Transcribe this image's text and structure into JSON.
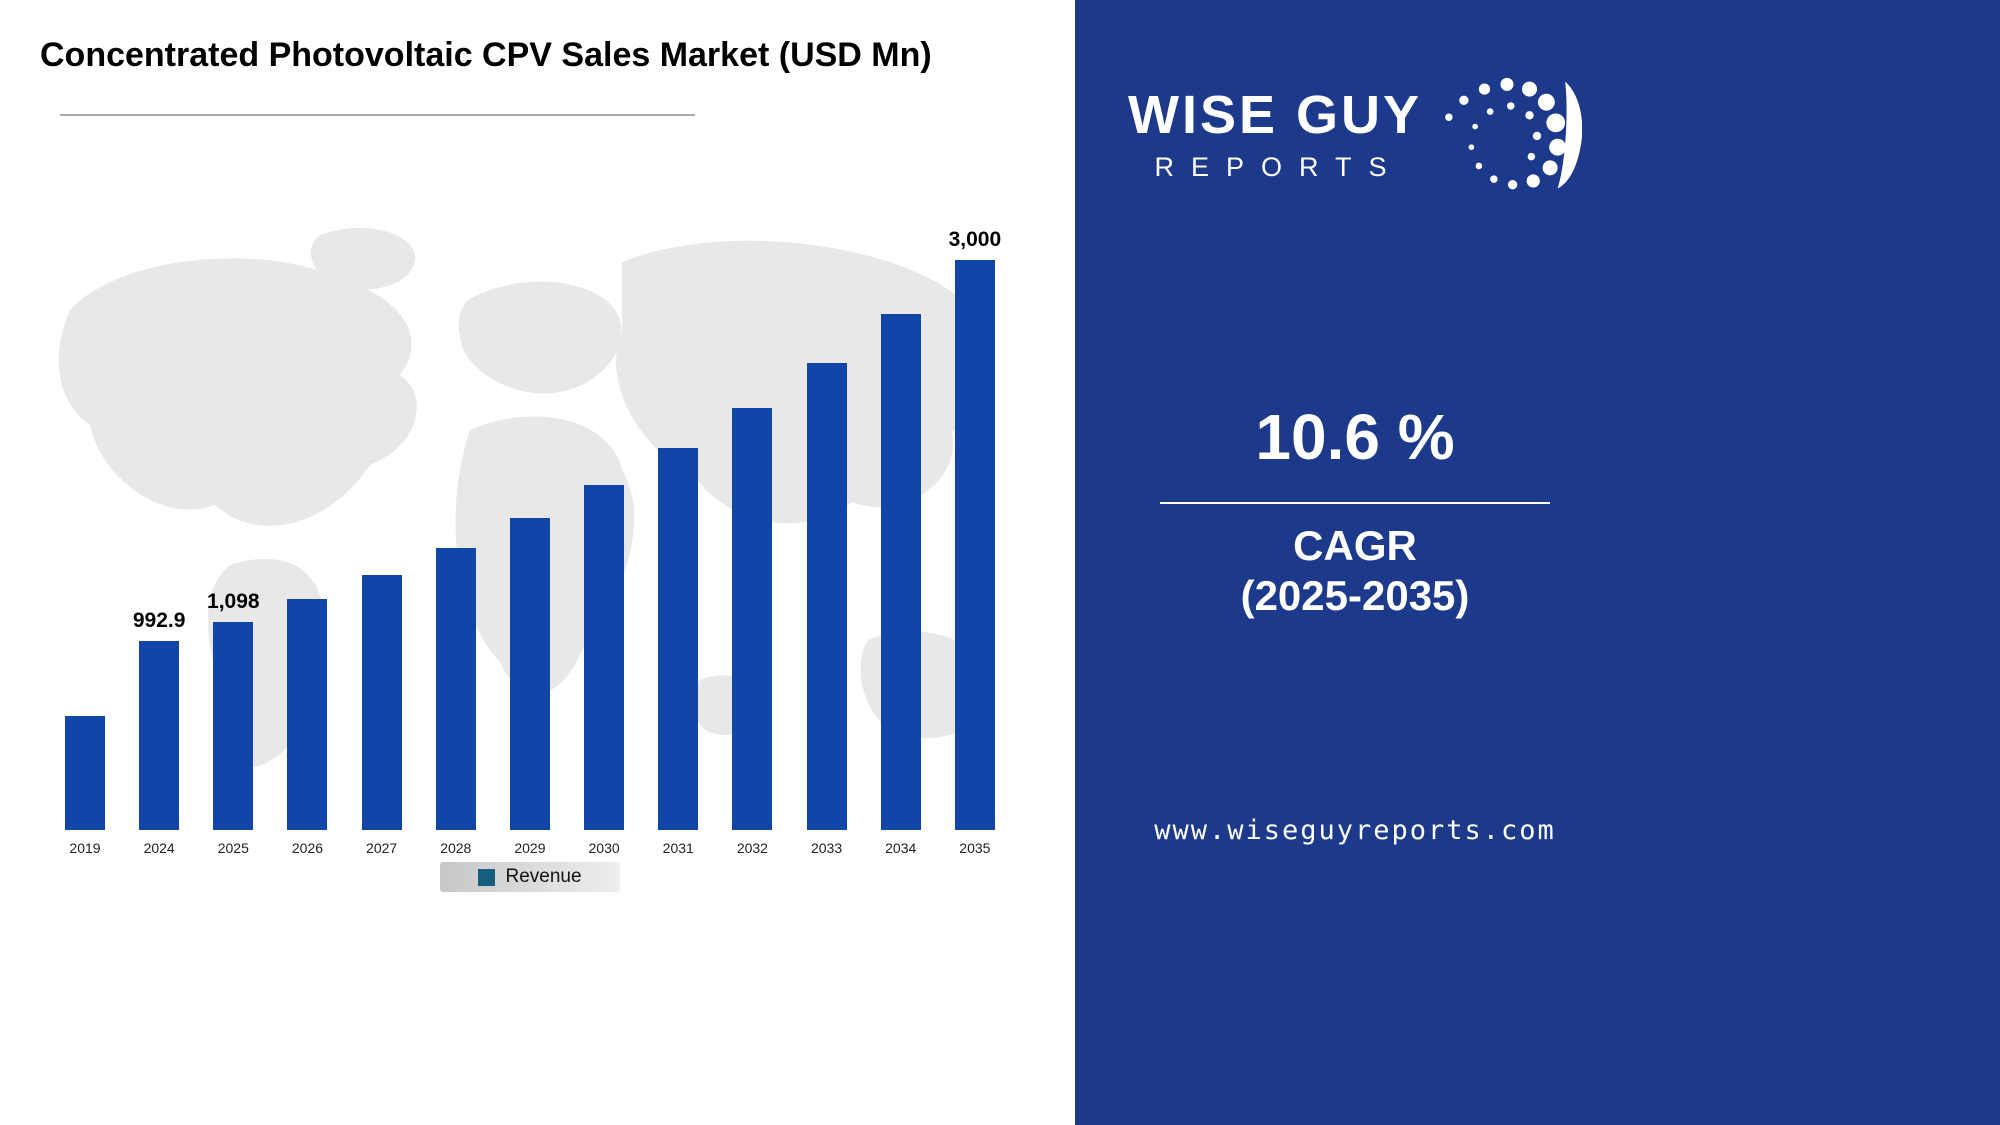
{
  "chart_data": {
    "type": "bar",
    "title": "Concentrated Photovoltaic CPV Sales Market (USD Mn)",
    "categories": [
      "2019",
      "2024",
      "2025",
      "2026",
      "2027",
      "2028",
      "2029",
      "2030",
      "2031",
      "2032",
      "2033",
      "2034",
      "2035"
    ],
    "values": [
      600,
      992.9,
      1098,
      1214,
      1343,
      1486,
      1643,
      1817,
      2010,
      2223,
      2458,
      2719,
      3000
    ],
    "data_labels": {
      "2024": "992.9",
      "2025": "1,098",
      "2035": "3,000"
    },
    "xlabel": "",
    "ylabel": "",
    "ylim": [
      0,
      3160
    ],
    "grid": false,
    "legend_position": "bottom",
    "bar_color": "#1245a8"
  },
  "legend": {
    "label": "Revenue",
    "color": "#175d7d"
  },
  "sidebar": {
    "background": "#1c398b",
    "logo_line1": "WISE GUY",
    "logo_line2": "REPORTS",
    "cagr_value": "10.6 %",
    "cagr_label_line1": "CAGR",
    "cagr_label_line2": "(2025-2035)",
    "website": "www.wiseguyreports.com"
  }
}
